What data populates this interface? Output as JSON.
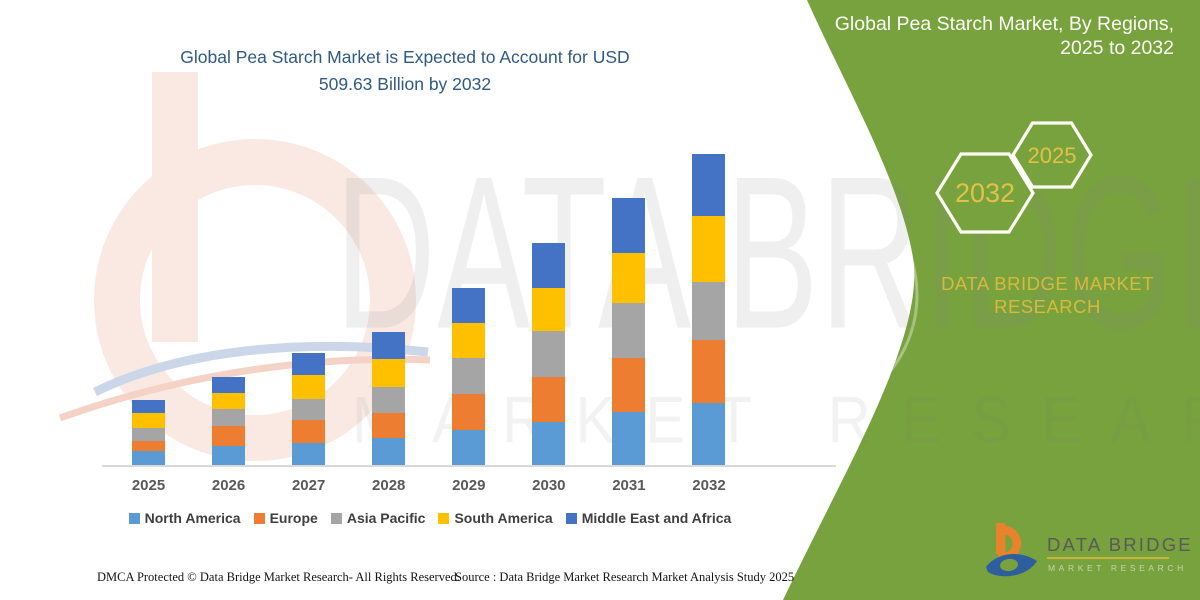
{
  "colors": {
    "panel_green": "#78A23E",
    "title_blue": "#2E5984",
    "accent_yellow": "#D8B93C",
    "hex_number_yellow": "#E2C246",
    "axis_label_gray": "#595959",
    "legend_text_gray": "#3F3F3F",
    "logo_orange": "#E8822C",
    "logo_blue": "#2E5E9E"
  },
  "chart": {
    "title_line1": "Global Pea Starch Market is Expected to Account for USD",
    "title_line2": "509.63 Billion by 2032"
  },
  "chart_data": {
    "type": "bar",
    "stacked": true,
    "title": "Global Pea Starch Market is Expected to Account for USD 509.63 Billion by 2032",
    "unit": "USD Billion",
    "categories": [
      "2025",
      "2026",
      "2027",
      "2028",
      "2029",
      "2030",
      "2031",
      "2032"
    ],
    "series": [
      {
        "name": "North America",
        "color": "#5B9BD5",
        "values": [
          24.5,
          32.7,
          38.1,
          45.2,
          58.0,
          71.9,
          87.7,
          102.4
        ]
      },
      {
        "name": "Europe",
        "color": "#ED7D31",
        "values": [
          16.3,
          32.7,
          37.1,
          40.8,
          60.4,
          73.0,
          88.2,
          103.4
        ]
      },
      {
        "name": "Asia Pacific",
        "color": "#A5A5A5",
        "values": [
          21.2,
          27.3,
          33.8,
          43.6,
          57.2,
          75.6,
          89.8,
          95.2
        ]
      },
      {
        "name": "South America",
        "color": "#FFC000",
        "values": [
          25.3,
          27.3,
          39.7,
          44.6,
          57.2,
          70.7,
          81.7,
          107.3
        ]
      },
      {
        "name": "Middle East and Africa",
        "color": "#4472C4",
        "values": [
          21.2,
          25.0,
          35.4,
          45.2,
          58.5,
          72.5,
          90.8,
          101.3
        ]
      }
    ],
    "total_2032": 509.63,
    "y_axis_visible": false,
    "gridlines": false,
    "legend_position": "bottom"
  },
  "panel": {
    "title_line1": "Global Pea Starch Market, By Regions,",
    "title_line2": "2025 to 2032",
    "hexagon_large_label": "2032",
    "hexagon_small_label": "2025",
    "brand_line1": "DATA BRIDGE MARKET",
    "brand_line2": "RESEARCH"
  },
  "watermark": {
    "line1": "DATA BRIDGE",
    "line2": "MARKET RESEARCH"
  },
  "logo": {
    "name": "DATA BRIDGE",
    "subtext": "MARKET RESEARCH"
  },
  "footer": {
    "left": "DMCA Protected © Data Bridge Market Research- All Rights Reserved.",
    "right": "Source : Data Bridge Market Research Market Analysis Study 2025"
  }
}
